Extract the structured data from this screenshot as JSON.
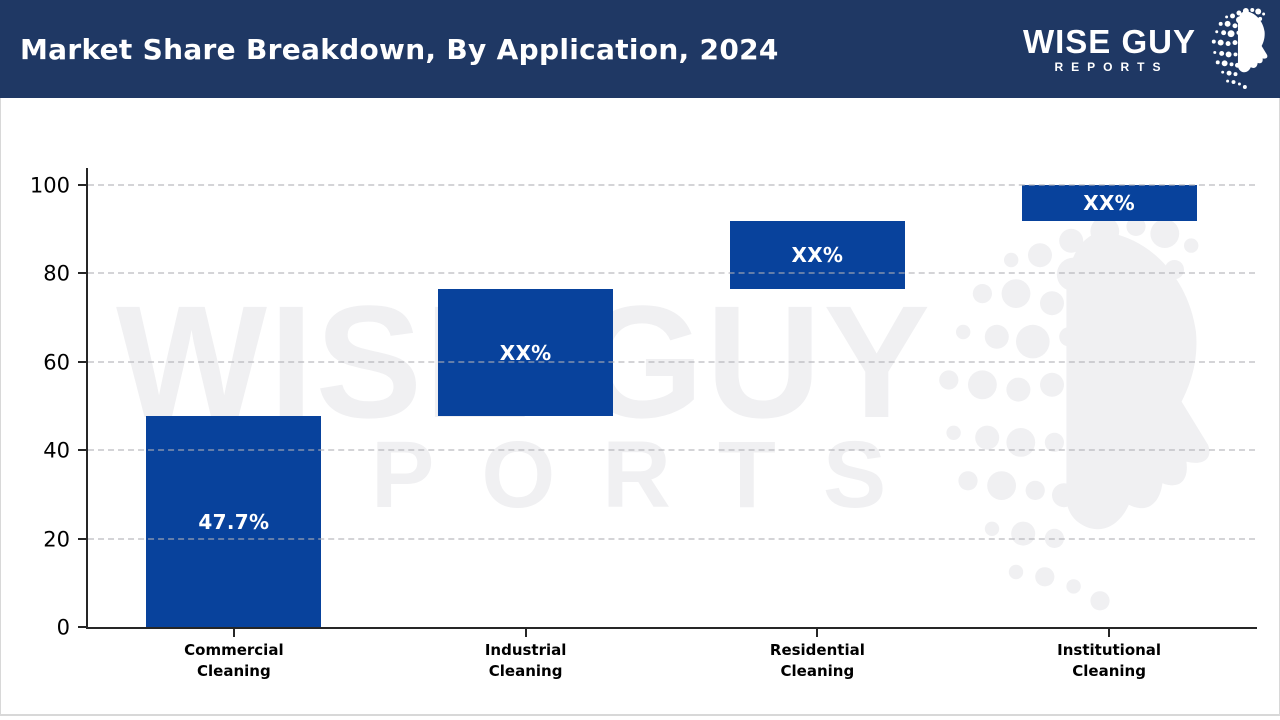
{
  "header": {
    "title": "Market Share Breakdown, By Application, 2024",
    "logo": {
      "line1": "WISE GUY",
      "line2": "REPORTS"
    }
  },
  "watermark": {
    "line1": "WISE GUY",
    "line2": "REPORTS"
  },
  "chart_data": {
    "type": "bar",
    "subtype": "waterfall",
    "title": "Market Share Breakdown, By Application, 2024",
    "categories": [
      [
        "Commercial",
        "Cleaning"
      ],
      [
        "Industrial",
        "Cleaning"
      ],
      [
        "Residential",
        "Cleaning"
      ],
      [
        "Institutional",
        "Cleaning"
      ]
    ],
    "segments": [
      {
        "category": "Commercial Cleaning",
        "start": 0,
        "end": 47.7,
        "label": "47.7%"
      },
      {
        "category": "Industrial Cleaning",
        "start": 47.7,
        "end": 76.5,
        "label": "XX%"
      },
      {
        "category": "Residential Cleaning",
        "start": 76.5,
        "end": 91.9,
        "label": "XX%"
      },
      {
        "category": "Institutional Cleaning",
        "start": 91.9,
        "end": 100,
        "label": "XX%"
      }
    ],
    "xlabel": "",
    "ylabel": "",
    "ylim": [
      0,
      100
    ],
    "yticks": [
      0,
      20,
      40,
      60,
      80,
      100
    ],
    "grid": "horizontal-dashed",
    "legend": "none"
  },
  "colors": {
    "header_bg": "#1f3864",
    "title_text": "#ffffff",
    "bar": "#08429c",
    "bar_label_text": "#ffffff",
    "axis": "#262626",
    "tick_text": "#000000",
    "grid": "#d9d9d9",
    "watermark": "#f0f0f2",
    "frame": "#d8d8d8"
  }
}
